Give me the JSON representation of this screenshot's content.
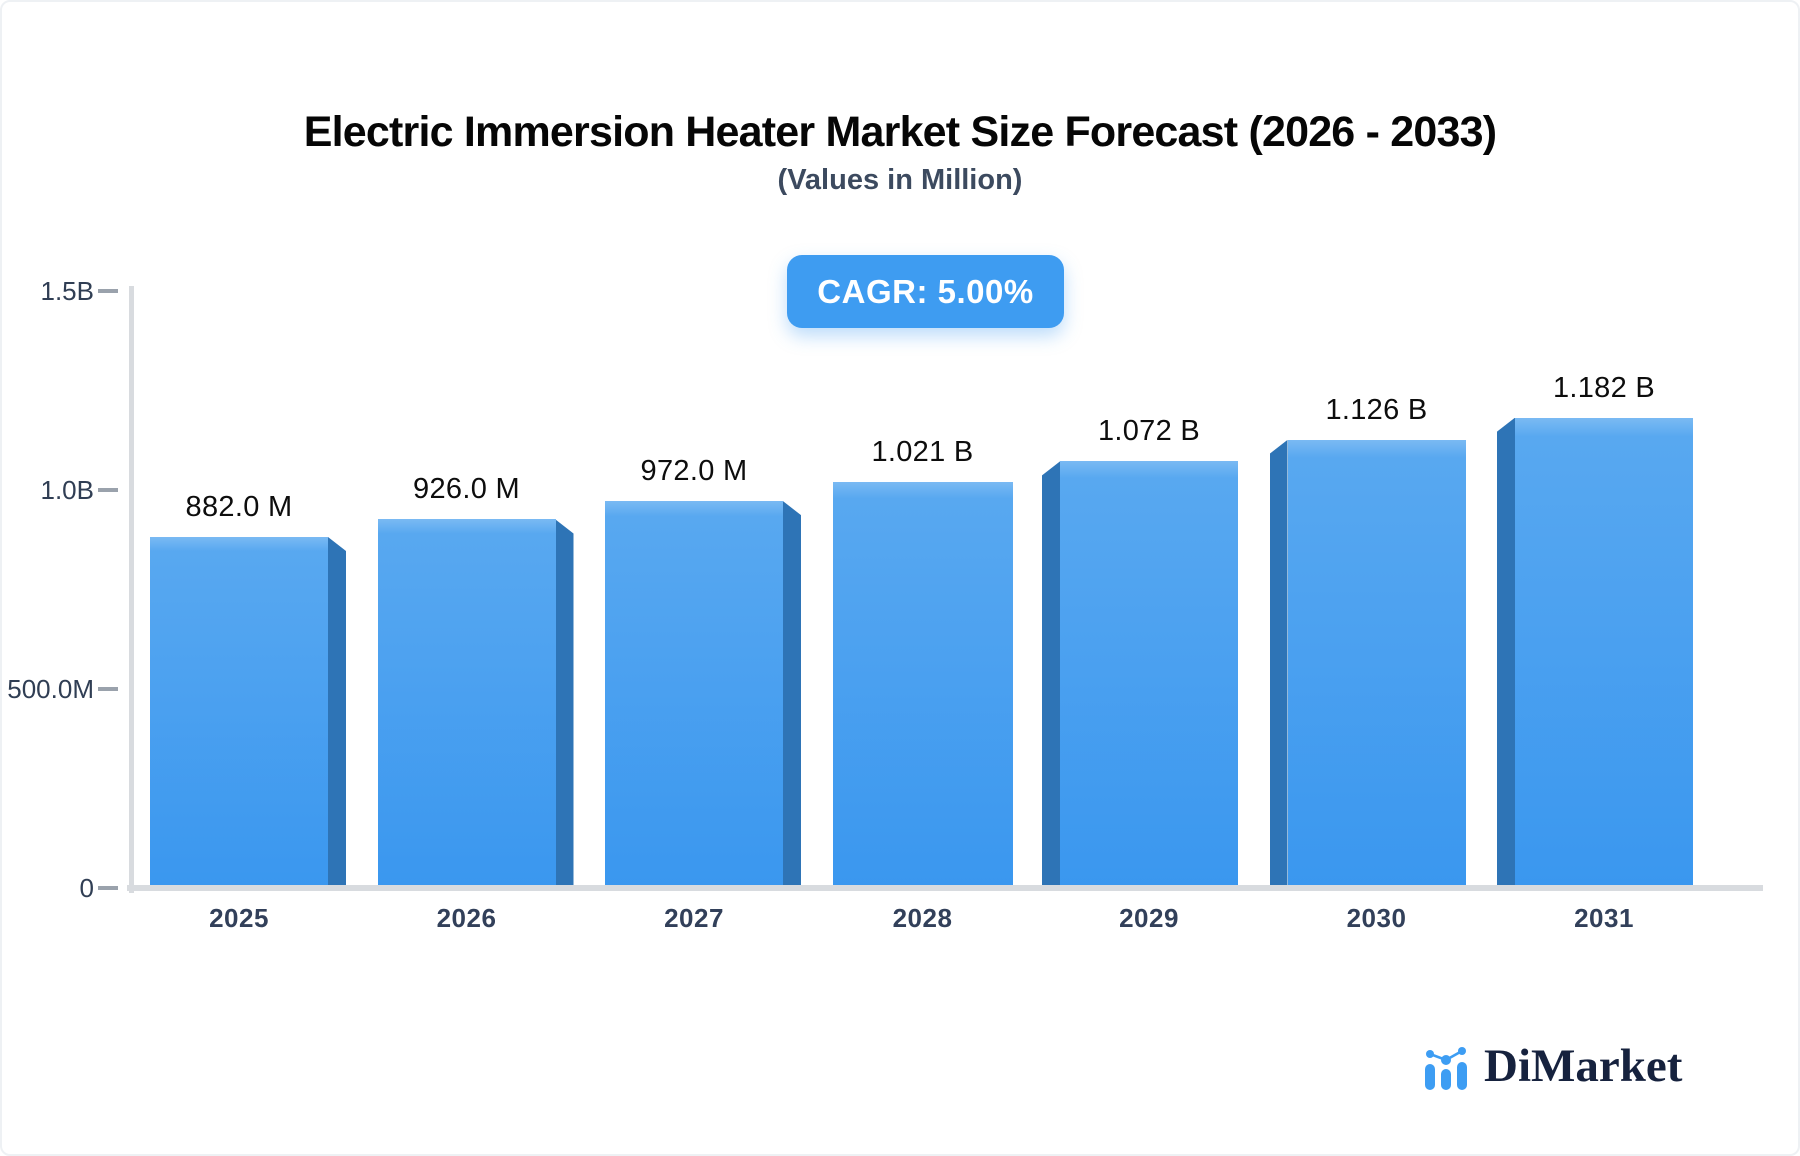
{
  "title": "Electric Immersion Heater Market Size Forecast (2026 - 2033)",
  "subtitle": "(Values in Million)",
  "badge": {
    "label": "CAGR: 5.00%"
  },
  "chart_data": {
    "type": "bar",
    "title": "Electric Immersion Heater Market Size Forecast (2026 - 2033)",
    "subtitle": "(Values in Million)",
    "unit": "USD Million",
    "cagr": "5.00%",
    "categories": [
      "2025",
      "2026",
      "2027",
      "2028",
      "2029",
      "2030",
      "2031"
    ],
    "values": [
      882,
      926,
      972,
      1021,
      1072,
      1126,
      1182
    ],
    "value_labels": [
      "882.0 M",
      "926.0 M",
      "972.0 M",
      "1.021 B",
      "1.072 B",
      "1.126 B",
      "1.182 B"
    ],
    "ylim": [
      0,
      1500
    ],
    "yticks": [
      {
        "label": "1.5B",
        "value": 1500
      },
      {
        "label": "1.0B",
        "value": 1000
      },
      {
        "label": "500.0M",
        "value": 500
      },
      {
        "label": "0",
        "value": 0
      }
    ],
    "grid": false,
    "legend": false,
    "bar_style": "3d-extruded"
  },
  "colors": {
    "bar_top": "#7abaf3",
    "bar_light_hi": "#58a8f0",
    "bar_light_lo": "#3a97ef",
    "bar_side": "#2e74b6",
    "badge_bg": "#3e9cf1",
    "axis_line": "#d8dbdf",
    "tick": "#9aa2ac",
    "axis_text": "#303e54",
    "year_text": "#32405a",
    "logo_blue": "#3d9df3",
    "logo_navy": "#16223e"
  },
  "logo": {
    "text": "DiMarket",
    "icon": "mini-bar-chart-logo-icon"
  }
}
